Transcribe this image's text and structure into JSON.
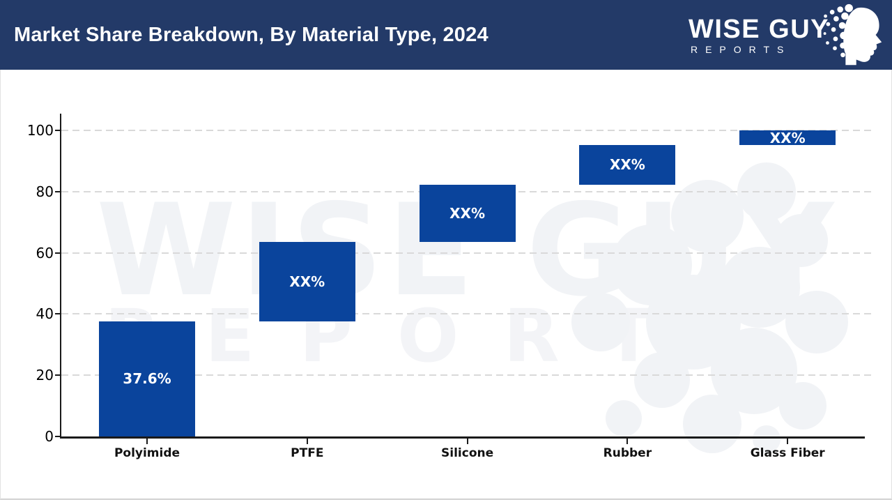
{
  "header": {
    "title": "Market Share Breakdown, By Material Type, 2024",
    "bg_color": "#233A68",
    "logo": {
      "line1": "WISE GUY",
      "line2": "REPORTS"
    }
  },
  "watermark": {
    "line1": "WISE GUY",
    "line2": "R E P O R T S"
  },
  "chart_data": {
    "type": "bar",
    "subtype": "waterfall",
    "title": "Market Share Breakdown, By Material Type, 2024",
    "categories": [
      "Polyimide",
      "PTFE",
      "Silicone",
      "Rubber",
      "Glass Fiber"
    ],
    "segments": [
      {
        "category": "Polyimide",
        "start": 0,
        "end": 37.6,
        "label": "37.6%"
      },
      {
        "category": "PTFE",
        "start": 37.6,
        "end": 63.5,
        "label": "XX%"
      },
      {
        "category": "Silicone",
        "start": 63.5,
        "end": 82.3,
        "label": "XX%"
      },
      {
        "category": "Rubber",
        "start": 82.3,
        "end": 95.2,
        "label": "XX%"
      },
      {
        "category": "Glass Fiber",
        "start": 95.2,
        "end": 100,
        "label": "XX%"
      }
    ],
    "yticks": [
      0,
      20,
      40,
      60,
      80,
      100
    ],
    "ylim": [
      0,
      105
    ],
    "xlabel": "",
    "ylabel": "",
    "legend": "none",
    "grid": "horizontal-dashed",
    "bar_color": "#0A449C",
    "bar_label_color": "#ffffff",
    "gridline_color": "#d9d9d9"
  }
}
